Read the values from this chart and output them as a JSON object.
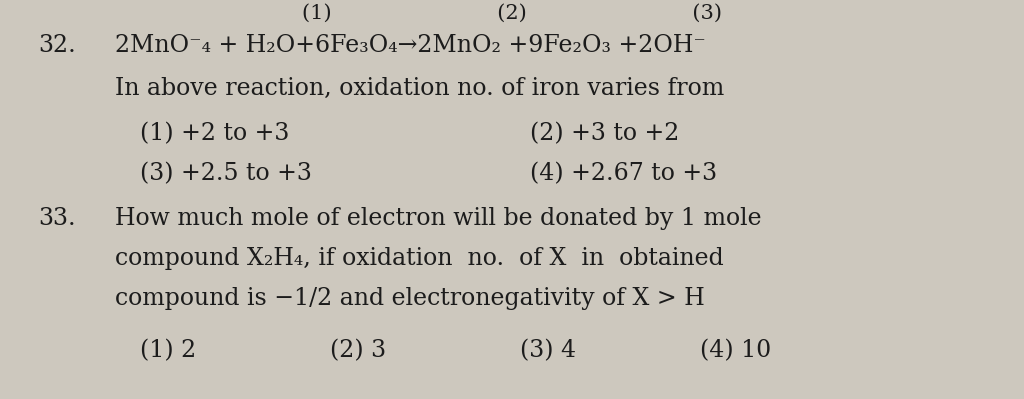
{
  "bg_color": "#cdc8be",
  "text_color": "#1c1c1c",
  "fig_width": 10.24,
  "fig_height": 3.99,
  "dpi": 100,
  "q32_num": "32.",
  "q33_num": "33.",
  "q32_eq": "2MnO⁻₄ + H₂O+6Fe₃O₄→2MnO₂ +9Fe₂O₃ +2OH⁻",
  "q32_text": "In above reaction, oxidation no. of iron varies from",
  "q32_o1": "(1) +2 to +3",
  "q32_o2": "(2) +3 to +2",
  "q32_o3": "(3) +2.5 to +3",
  "q32_o4": "(4) +2.67 to +3",
  "q33_l1": "How much mole of electron will be donated by 1 mole",
  "q33_l2": "compound X₂H₄, if oxidation  no.  of X  in  obtained",
  "q33_l3": "compound is −1/2 and electronegativity of X > H",
  "q33_o1": "(1) 2",
  "q33_o2": "(2) 3",
  "q33_o3": "(3) 4",
  "q33_o4": "(4) 10",
  "top_remnant": "(1)                         (2)                         (3)",
  "fs": 17,
  "fs_small": 14
}
